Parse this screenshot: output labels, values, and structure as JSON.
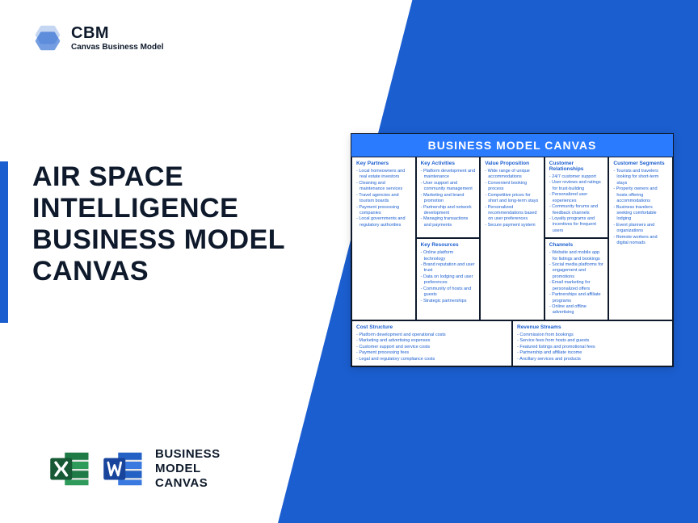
{
  "logo": {
    "title": "CBM",
    "subtitle": "Canvas Business Model"
  },
  "main_title": "AIR SPACE INTELLIGENCE BUSINESS MODEL CANVAS",
  "bmc_label": "BUSINESS\nMODEL\nCANVAS",
  "colors": {
    "accent": "#1b5ecf",
    "text": "#0e1a2b",
    "excel": "#1e7b46",
    "word": "#2461c4"
  },
  "canvas": {
    "header": "BUSINESS MODEL CANVAS",
    "sections": {
      "key_partners": {
        "title": "Key Partners",
        "items": [
          "Local homeowners and real estate investors",
          "Cleaning and maintenance services",
          "Travel agencies and tourism boards",
          "Payment processing companies",
          "Local governments and regulatory authorities"
        ]
      },
      "key_activities": {
        "title": "Key Activities",
        "items": [
          "Platform development and maintenance",
          "User support and community management",
          "Marketing and brand promotion",
          "Partnership and network development",
          "Managing transactions and payments"
        ]
      },
      "value_proposition": {
        "title": "Value Proposition",
        "items": [
          "Wide range of unique accommodations",
          "Convenient booking process",
          "Competitive prices for short and long-term stays",
          "Personalized recommendations based on user preferences",
          "Secure payment system"
        ]
      },
      "customer_relationships": {
        "title": "Customer Relationships",
        "items": [
          "24/7 customer support",
          "User reviews and ratings for trust-building",
          "Personalized user experiences",
          "Community forums and feedback channels",
          "Loyalty programs and incentives for frequent users"
        ]
      },
      "customer_segments": {
        "title": "Customer Segments",
        "items": [
          "Tourists and travelers looking for short-term stays",
          "Property owners and hosts offering accommodations",
          "Business travelers seeking comfortable lodging",
          "Event planners and organizations",
          "Remote workers and digital nomads"
        ]
      },
      "key_resources": {
        "title": "Key Resources",
        "items": [
          "Online platform technology",
          "Brand reputation and user trust",
          "Data on lodging and user preferences",
          "Community of hosts and guests",
          "Strategic partnerships"
        ]
      },
      "channels": {
        "title": "Channels",
        "items": [
          "Website and mobile app for listings and bookings",
          "Social media platforms for engagement and promotions",
          "Email marketing for personalized offers",
          "Partnerships and affiliate programs",
          "Online and offline advertising"
        ]
      },
      "cost_structure": {
        "title": "Cost Structure",
        "items": [
          "Platform development and operational costs",
          "Marketing and advertising expenses",
          "Customer support and service costs",
          "Payment processing fees",
          "Legal and regulatory compliance costs"
        ]
      },
      "revenue_streams": {
        "title": "Revenue Streams",
        "items": [
          "Commission from bookings",
          "Service fees from hosts and guests",
          "Featured listings and promotional fees",
          "Partnership and affiliate income",
          "Ancillary services and products"
        ]
      }
    }
  }
}
